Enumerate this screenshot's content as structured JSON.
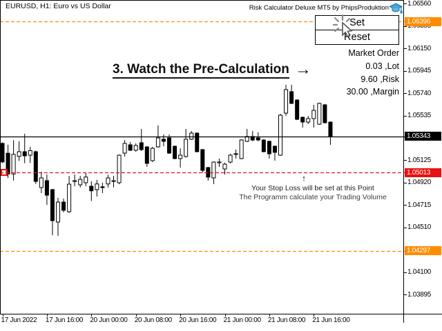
{
  "window": {
    "symbol_title": "EURUSD, H1:  Euro vs US Dollar",
    "indicator_title": "Risk Calculator Deluxe MT5 by PhipsProduktion",
    "indicator_icon": "graduation-cap-icon"
  },
  "panel": {
    "set_label": "Set",
    "reset_label": "Reset",
    "cursor_icon": "click-cursor-icon"
  },
  "order_info": {
    "title": "Market Order",
    "lot_line": "0.03 ,Lot",
    "risk_line": "9.60 ,Risk",
    "margin_line": "30.00 ,Margin"
  },
  "annotations": {
    "heading": "3. Watch the Pre-Calculation",
    "heading_arrow": "→",
    "stoploss_pointer": "↑",
    "stoploss_line1": "Your Stop Loss will be set at this Point",
    "stoploss_line2": "The Programm calculate your Trading Volume"
  },
  "colors": {
    "accent_orange": "#FF8C00",
    "accent_red": "#EA1010",
    "current_price_bg": "#000000",
    "bull_candle": "#FFFFFF",
    "bear_candle": "#000000",
    "icon_blue": "#44A4D9",
    "icon_blue_dark": "#1C6FA8"
  },
  "chart_data": {
    "type": "candlestick",
    "title": "EURUSD H1 candlestick chart",
    "x_tick_labels": [
      "17 Jun 2022",
      "17 Jun 16:00",
      "20 Jun 00:00",
      "20 Jun 08:00",
      "20 Jun 16:00",
      "21 Jun 00:00",
      "21 Jun 08:00",
      "21 Jun 16:00"
    ],
    "x_tick_bar_index": [
      0,
      8,
      16,
      24,
      32,
      40,
      48,
      56
    ],
    "y_ticks": [
      1.0656,
      1.06355,
      1.0615,
      1.05945,
      1.0574,
      1.05535,
      1.05125,
      1.0492,
      1.04715,
      1.0451,
      1.041,
      1.03895
    ],
    "y_range": {
      "top": 1.06592,
      "bottom": 1.03721
    },
    "levels": [
      {
        "name": "take-profit-upper-line",
        "price": 1.06396,
        "style": "dashed",
        "color": "#FF8C00",
        "label_bg": "#FF8C00",
        "draggable": true
      },
      {
        "name": "current-price-line",
        "price": 1.05343,
        "style": "solid",
        "color": "#000000",
        "label_bg": "#000000",
        "draggable": false
      },
      {
        "name": "stop-loss-line",
        "price": 1.05013,
        "style": "dashed",
        "color": "#EA1010",
        "label_bg": "#EA1010",
        "draggable": true,
        "marker": true
      },
      {
        "name": "take-profit-lower-line",
        "price": 1.04297,
        "style": "dashed",
        "color": "#FF8C00",
        "label_bg": "#FF8C00",
        "draggable": true
      }
    ],
    "candles": [
      [
        1.0528,
        1.0529,
        1.051,
        1.0511
      ],
      [
        1.0519,
        1.05267,
        1.04963,
        1.05
      ],
      [
        1.05,
        1.05309,
        1.0494,
        1.0518
      ],
      [
        1.05162,
        1.05299,
        1.0512,
        1.05204
      ],
      [
        1.05204,
        1.05368,
        1.05099,
        1.05166
      ],
      [
        1.05172,
        1.0525,
        1.051,
        1.05214
      ],
      [
        1.05204,
        1.05214,
        1.04909,
        1.04932
      ],
      [
        1.04876,
        1.05021,
        1.04825,
        1.04964
      ],
      [
        1.04939,
        1.04995,
        1.04718,
        1.04806
      ],
      [
        1.04857,
        1.04863,
        1.0444,
        1.04573
      ],
      [
        1.0456,
        1.04781,
        1.04434,
        1.04743
      ],
      [
        1.04743,
        1.04775,
        1.04649,
        1.04668
      ],
      [
        1.04655,
        1.04983,
        1.04643,
        1.04907
      ],
      [
        1.04933,
        1.04995,
        1.04888,
        1.04939
      ],
      [
        1.04901,
        1.04983,
        1.04877,
        1.04951
      ],
      [
        1.0492,
        1.05014,
        1.04888,
        1.04972
      ],
      [
        1.04888,
        1.04933,
        1.04752,
        1.04846
      ],
      [
        1.04857,
        1.04946,
        1.04794,
        1.04909
      ],
      [
        1.04883,
        1.0492,
        1.04825,
        1.04877
      ],
      [
        1.04909,
        1.04993,
        1.04877,
        1.04964
      ],
      [
        1.04933,
        1.04983,
        1.04877,
        1.04939
      ],
      [
        1.0492,
        1.05179,
        1.04907,
        1.05172
      ],
      [
        1.05191,
        1.05311,
        1.0516,
        1.0528
      ],
      [
        1.05267,
        1.05292,
        1.0521,
        1.05217
      ],
      [
        1.05217,
        1.0528,
        1.05204,
        1.05261
      ],
      [
        1.05286,
        1.05412,
        1.0521,
        1.05223
      ],
      [
        1.05248,
        1.05254,
        1.05065,
        1.05097
      ],
      [
        1.05122,
        1.05248,
        1.05109,
        1.05235
      ],
      [
        1.05248,
        1.05444,
        1.0524,
        1.0533
      ],
      [
        1.05318,
        1.05362,
        1.05254,
        1.05299
      ],
      [
        1.0533,
        1.05362,
        1.05185,
        1.05191
      ],
      [
        1.05254,
        1.0526,
        1.05135,
        1.05141
      ],
      [
        1.05141,
        1.05235,
        1.05059,
        1.05172
      ],
      [
        1.0516,
        1.05412,
        1.0515,
        1.05318
      ],
      [
        1.05318,
        1.05393,
        1.05311,
        1.05374
      ],
      [
        1.05374,
        1.05381,
        1.05198,
        1.05204
      ],
      [
        1.05223,
        1.05229,
        1.05014,
        1.05033
      ],
      [
        1.05059,
        1.05065,
        1.04939,
        1.04971
      ],
      [
        1.04964,
        1.05115,
        1.04907,
        1.05109
      ],
      [
        1.05109,
        1.05141,
        1.05065,
        1.0511
      ],
      [
        1.05046,
        1.05103,
        1.04995,
        1.0509
      ],
      [
        1.05109,
        1.05185,
        1.05097,
        1.05172
      ],
      [
        1.05185,
        1.05223,
        1.05141,
        1.05186
      ],
      [
        1.05141,
        1.05318,
        1.05135,
        1.05311
      ],
      [
        1.05299,
        1.05412,
        1.05292,
        1.05343
      ],
      [
        1.05343,
        1.05393,
        1.05299,
        1.05311
      ],
      [
        1.0533,
        1.05381,
        1.05299,
        1.05311
      ],
      [
        1.05311,
        1.05318,
        1.05198,
        1.05204
      ],
      [
        1.05299,
        1.05305,
        1.05141,
        1.05185
      ],
      [
        1.05254,
        1.0526,
        1.05122,
        1.05198
      ],
      [
        1.05172,
        1.05551,
        1.05166,
        1.05538
      ],
      [
        1.05557,
        1.05816,
        1.05532,
        1.05772
      ],
      [
        1.05753,
        1.05816,
        1.0564,
        1.05646
      ],
      [
        1.05677,
        1.05683,
        1.05494,
        1.055
      ],
      [
        1.05519,
        1.05525,
        1.05425,
        1.05475
      ],
      [
        1.05475,
        1.05532,
        1.05456,
        1.05507
      ],
      [
        1.05507,
        1.05633,
        1.05425,
        1.05582
      ],
      [
        1.05456,
        1.05652,
        1.0545,
        1.05646
      ],
      [
        1.05633,
        1.05639,
        1.05463,
        1.05469
      ],
      [
        1.05475,
        1.05481,
        1.05267,
        1.05343
      ]
    ]
  }
}
